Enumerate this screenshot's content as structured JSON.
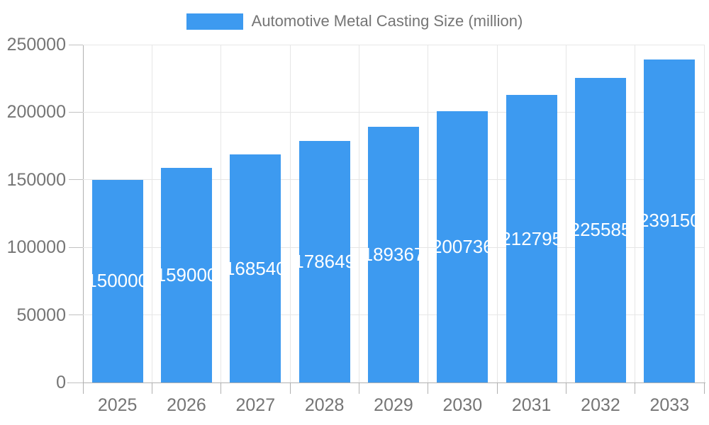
{
  "legend": {
    "label": "Automotive Metal Casting Size (million)"
  },
  "chart_data": {
    "type": "bar",
    "title": "Automotive Metal Casting Size (million)",
    "categories": [
      "2025",
      "2026",
      "2027",
      "2028",
      "2029",
      "2030",
      "2031",
      "2032",
      "2033"
    ],
    "values": [
      150000,
      159000,
      168540,
      178649,
      189367,
      200736,
      212795,
      225585,
      239150
    ],
    "value_labels": [
      "150000",
      "159000",
      "168540",
      "178649",
      "189367",
      "200736",
      "212795",
      "225585",
      "239150"
    ],
    "xlabel": "",
    "ylabel": "",
    "ylim": [
      0,
      250000
    ],
    "yticks": [
      0,
      50000,
      100000,
      150000,
      200000,
      250000
    ],
    "ytick_labels": [
      "0",
      "50000",
      "100000",
      "150000",
      "200000",
      "250000"
    ],
    "grid": true,
    "legend_position": "top-center",
    "colors": {
      "bar": "#3d9af0",
      "value_text": "#ffffff",
      "axis_text": "#757575",
      "gridline": "#e6e6e6",
      "axis_line": "#b0b0b0"
    }
  }
}
